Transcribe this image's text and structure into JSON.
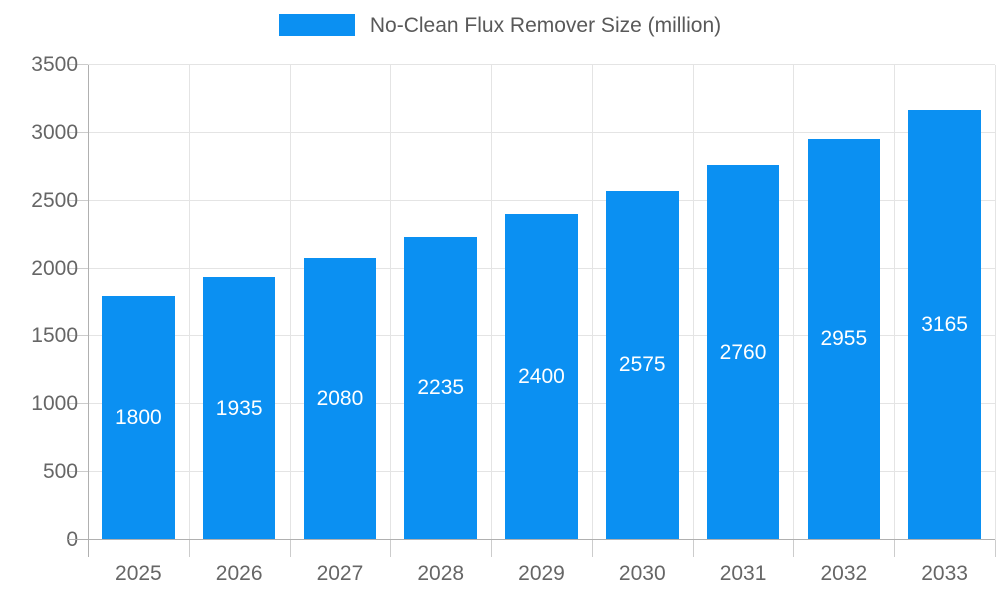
{
  "legend": {
    "label": "No-Clean Flux Remover Size (million)"
  },
  "chart_data": {
    "type": "bar",
    "title": "No-Clean Flux Remover Size (million)",
    "categories": [
      "2025",
      "2026",
      "2027",
      "2028",
      "2029",
      "2030",
      "2031",
      "2032",
      "2033"
    ],
    "values": [
      1800,
      1935,
      2080,
      2235,
      2400,
      2575,
      2760,
      2955,
      3165
    ],
    "bar_labels": [
      "1800",
      "1935",
      "2080",
      "2235",
      "2400",
      "2575",
      "2760",
      "2955",
      "3165"
    ],
    "xlabel": "",
    "ylabel": "",
    "ylim": [
      0,
      3500
    ],
    "ytick_step": 500,
    "ytick_labels": [
      "0",
      "500",
      "1000",
      "1500",
      "2000",
      "2500",
      "3000",
      "3500"
    ],
    "grid": true,
    "legend_position": "top-center",
    "colors": {
      "bar": "#0b90f2",
      "bar_label": "#ffffff",
      "axis_line": "#b0b0b0",
      "grid_line": "#e4e4e4",
      "tick_line": "#cccccc",
      "axis_text": "#666666",
      "legend_text": "#595959"
    }
  }
}
